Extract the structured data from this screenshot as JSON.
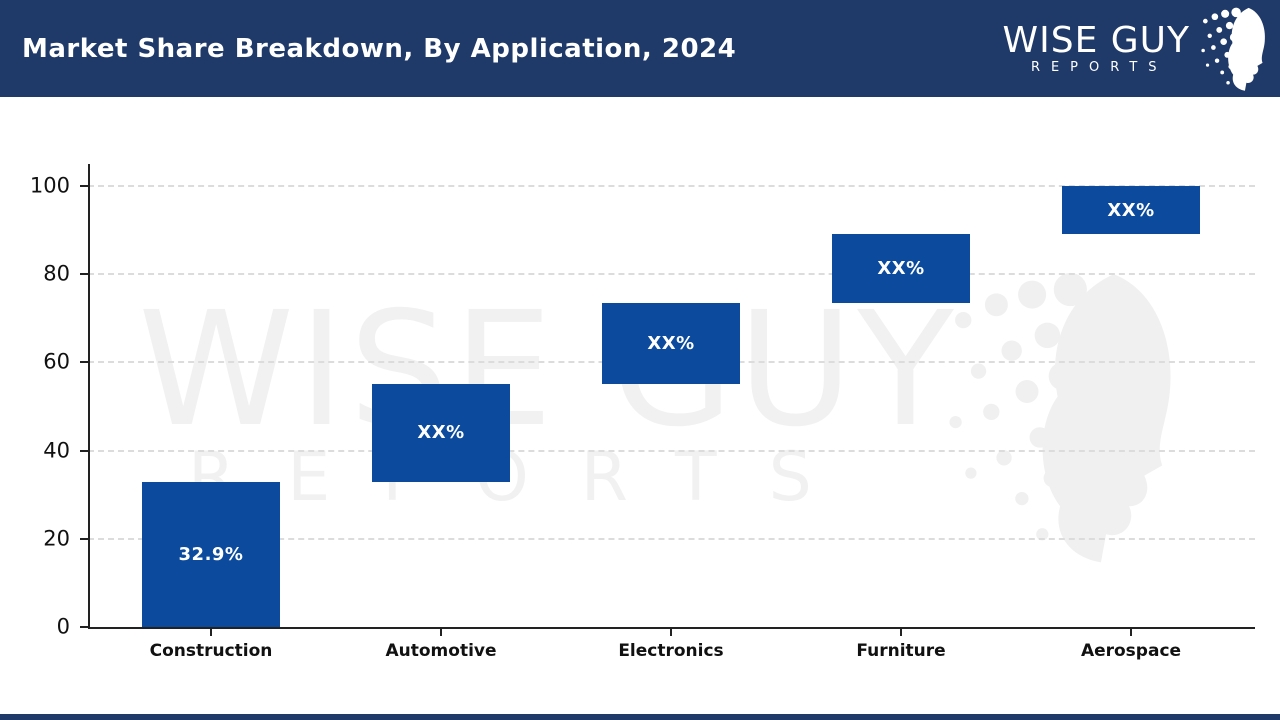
{
  "header": {
    "title": "Market Share Breakdown, By Application, 2024",
    "logo_line1": "WISE GUY",
    "logo_line2": "REPORTS"
  },
  "watermark": {
    "line1": "WISE GUY",
    "line2": "REPORTS"
  },
  "colors": {
    "header_bg": "#1f3a68",
    "bar_fill": "#0b4a9c",
    "bar_label": "#ffffff",
    "gridline": "#dcdcdc",
    "axis": "#222222"
  },
  "chart_data": {
    "type": "bar",
    "subtype": "waterfall",
    "title": "Market Share Breakdown, By Application, 2024",
    "categories": [
      "Construction",
      "Automotive",
      "Electronics",
      "Furniture",
      "Aerospace"
    ],
    "segments": [
      {
        "category": "Construction",
        "start": 0,
        "end": 32.9,
        "label": "32.9%"
      },
      {
        "category": "Automotive",
        "start": 32.9,
        "end": 55.1,
        "label": "XX%"
      },
      {
        "category": "Electronics",
        "start": 55.1,
        "end": 73.5,
        "label": "XX%"
      },
      {
        "category": "Furniture",
        "start": 73.5,
        "end": 89.1,
        "label": "XX%"
      },
      {
        "category": "Aerospace",
        "start": 89.1,
        "end": 100,
        "label": "XX%"
      }
    ],
    "y_ticks": [
      0,
      20,
      40,
      60,
      80,
      100
    ],
    "ylim": [
      0,
      100
    ],
    "grid": "horizontal-dashed",
    "legend": "none"
  }
}
